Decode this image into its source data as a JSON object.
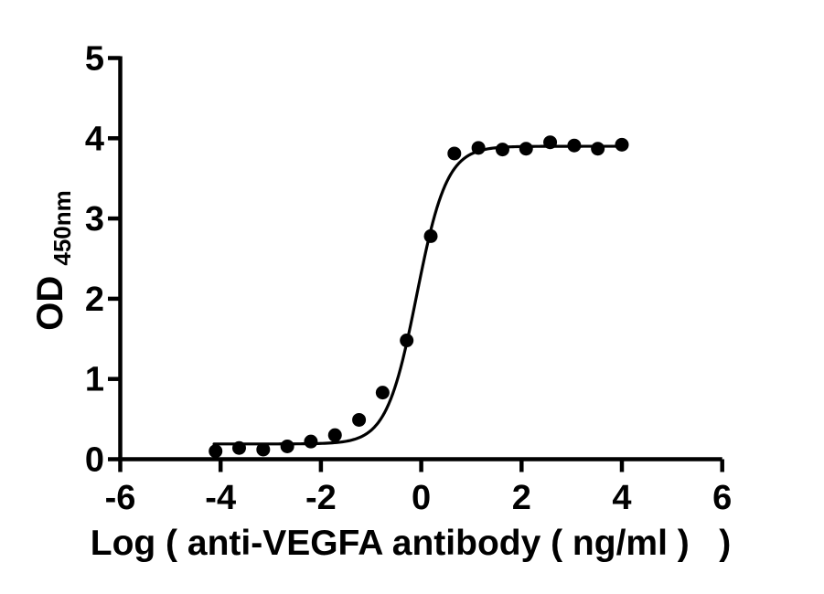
{
  "chart_data": {
    "type": "scatter",
    "title": "",
    "xlabel": "Log ( anti-VEGFA antibody ( ng/ml )   )",
    "ylabel_main": "OD",
    "ylabel_sub": "450nm",
    "xlim": [
      -6,
      6
    ],
    "ylim": [
      0,
      5
    ],
    "x_ticks": [
      "-6",
      "-4",
      "-2",
      "0",
      "2",
      "4",
      "6"
    ],
    "x_tick_values": [
      -6,
      -4,
      -2,
      0,
      2,
      4,
      6
    ],
    "y_ticks": [
      "0",
      "1",
      "2",
      "3",
      "4",
      "5"
    ],
    "y_tick_values": [
      0,
      1,
      2,
      3,
      4,
      5
    ],
    "grid": false,
    "legend": "none",
    "axis_color": "#000000",
    "marker_color": "#000000",
    "curve_color": "#000000",
    "background_color": "#ffffff",
    "marker_radius": 7.5,
    "points": [
      {
        "x": -4.1,
        "y": 0.1
      },
      {
        "x": -3.63,
        "y": 0.14
      },
      {
        "x": -3.15,
        "y": 0.12
      },
      {
        "x": -2.67,
        "y": 0.16
      },
      {
        "x": -2.2,
        "y": 0.22
      },
      {
        "x": -1.72,
        "y": 0.3
      },
      {
        "x": -1.24,
        "y": 0.49
      },
      {
        "x": -0.77,
        "y": 0.83
      },
      {
        "x": -0.29,
        "y": 1.48
      },
      {
        "x": 0.19,
        "y": 2.78
      },
      {
        "x": 0.66,
        "y": 3.81
      },
      {
        "x": 1.14,
        "y": 3.88
      },
      {
        "x": 1.62,
        "y": 3.86
      },
      {
        "x": 2.09,
        "y": 3.87
      },
      {
        "x": 2.57,
        "y": 3.95
      },
      {
        "x": 3.05,
        "y": 3.91
      },
      {
        "x": 3.52,
        "y": 3.87
      },
      {
        "x": 4.0,
        "y": 3.92
      }
    ],
    "fit_curve": {
      "model": "four_parameter_logistic",
      "bottom": 0.19,
      "top": 3.9,
      "hill_slope": 1.45,
      "log_ec50": -0.09,
      "x_start": -4.13,
      "x_end": 4.03
    }
  }
}
